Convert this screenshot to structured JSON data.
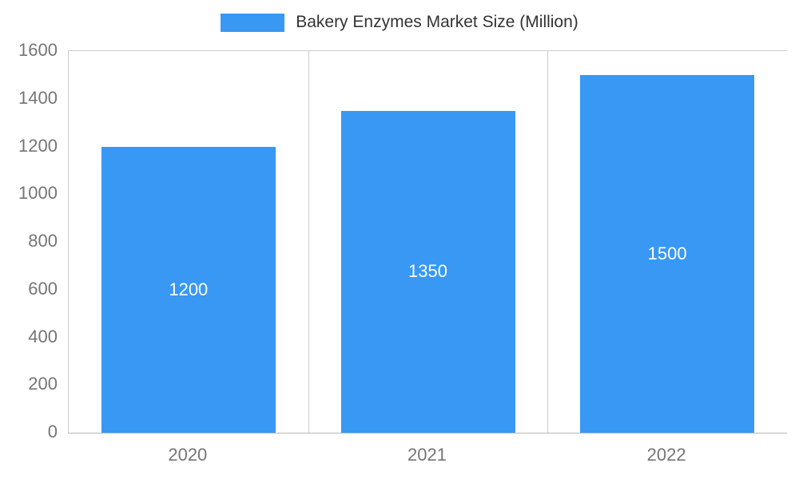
{
  "chart_data": {
    "type": "bar",
    "title": "Bakery Enzymes Market Size (Million)",
    "categories": [
      "2020",
      "2021",
      "2022"
    ],
    "values": [
      1200,
      1350,
      1500
    ],
    "xlabel": "",
    "ylabel": "",
    "ylim": [
      0,
      1600
    ],
    "yticks": [
      0,
      200,
      400,
      600,
      800,
      1000,
      1200,
      1400,
      1600
    ],
    "bar_color": "#3898f4",
    "value_label_color": "#ffffff",
    "axis_label_color": "#757575",
    "grid_color": "#cccccc",
    "legend_position": "top",
    "grid": "vertical-lines-and-top-line",
    "value_labels": "inside-center"
  }
}
